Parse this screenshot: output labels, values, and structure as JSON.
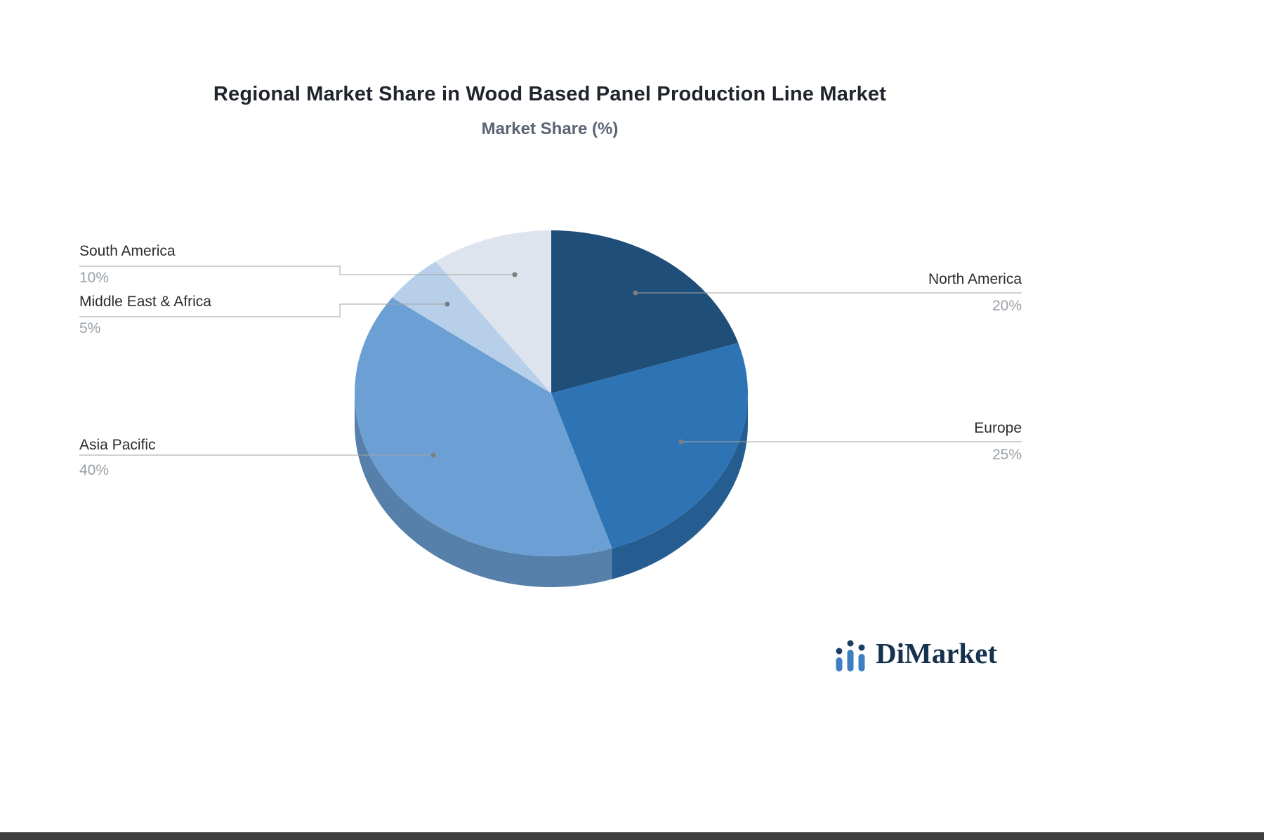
{
  "header": {
    "title": "Regional Market Share in Wood Based Panel Production Line Market",
    "subtitle": "Market Share (%)"
  },
  "chart_data": {
    "type": "pie",
    "style": "3d-pie",
    "title": "Regional Market Share in Wood Based Panel Production Line Market",
    "subtitle": "Market Share (%)",
    "unit": "%",
    "categories": [
      "North America",
      "Europe",
      "Asia Pacific",
      "Middle East & Africa",
      "South America"
    ],
    "values": [
      20,
      25,
      40,
      5,
      10
    ],
    "colors": [
      "#1f4e79",
      "#2e74b5",
      "#6ca0d4",
      "#b7cfe9",
      "#dde4ee"
    ],
    "start_angle": "top",
    "direction": "clockwise",
    "legend_position": "none",
    "callouts": [
      {
        "name": "North America",
        "value": "20%",
        "side": "right"
      },
      {
        "name": "Europe",
        "value": "25%",
        "side": "right"
      },
      {
        "name": "Asia Pacific",
        "value": "40%",
        "side": "left"
      },
      {
        "name": "Middle East & Africa",
        "value": "5%",
        "side": "left"
      },
      {
        "name": "South America",
        "value": "10%",
        "side": "left"
      }
    ]
  },
  "branding": {
    "logo_text": "DiMarket",
    "logo_icon": "bar-chart-icon"
  },
  "colors": {
    "title": "#20242c",
    "subtitle": "#5b6473",
    "label_name": "#2d2d2d",
    "label_value": "#9aa0a6",
    "leader_line": "#a3a3a3",
    "leader_dot": "#7d7d7d",
    "logo_text": "#16324f",
    "logo_icon_bar": "#3f7fc1",
    "logo_icon_dot": "#1d3e63",
    "footer_bar": "#3e3e3e"
  }
}
